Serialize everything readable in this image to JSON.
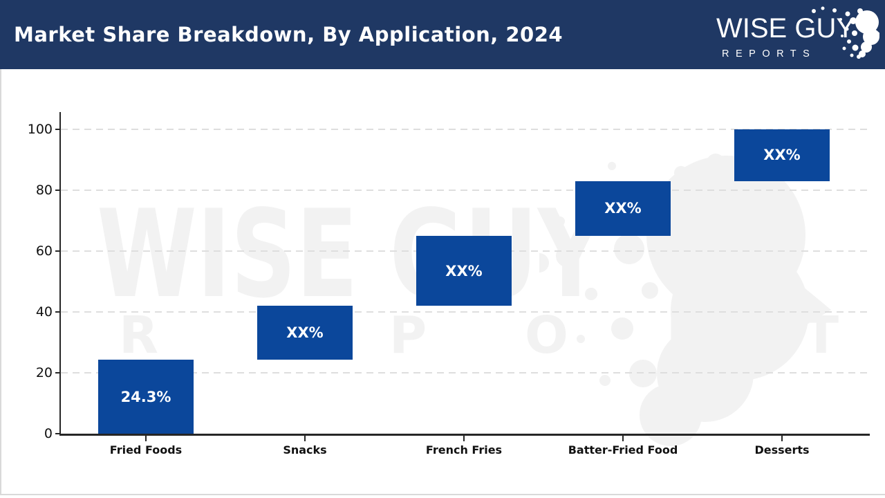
{
  "header": {
    "title": "Market Share Breakdown, By Application, 2024",
    "logo": {
      "primary": "WISE GUY",
      "secondary": "REPORTS"
    }
  },
  "watermark": {
    "primary": "WISE GUY",
    "secondary": "R E P O R T S"
  },
  "colors": {
    "header_bg": "#1F3864",
    "bar": "#0B479B",
    "bar_label": "#FFFFFF",
    "axis": "#262626",
    "grid": "#DEDEDE",
    "tick_label": "#111111",
    "watermark": "#F2F2F2",
    "border": "#D9D9D9"
  },
  "chart_data": {
    "type": "bar",
    "variant": "waterfall-floating-bars",
    "title": "Market Share Breakdown, By Application, 2024",
    "categories": [
      "Fried Foods",
      "Snacks",
      "French Fries",
      "Batter-Fried Food",
      "Desserts"
    ],
    "segments": [
      {
        "category": "Fried Foods",
        "start": 0,
        "end": 24.3,
        "label": "24.3%"
      },
      {
        "category": "Snacks",
        "start": 24.3,
        "end": 42,
        "label": "XX%"
      },
      {
        "category": "French Fries",
        "start": 42,
        "end": 65,
        "label": "XX%"
      },
      {
        "category": "Batter-Fried Food",
        "start": 65,
        "end": 83,
        "label": "XX%"
      },
      {
        "category": "Desserts",
        "start": 83,
        "end": 100,
        "label": "XX%"
      }
    ],
    "y_ticks": [
      0,
      20,
      40,
      60,
      80,
      100
    ],
    "ylim": [
      0,
      100
    ],
    "xlabel": "",
    "ylabel": "",
    "grid": "horizontal-dashed",
    "legend": "none"
  }
}
